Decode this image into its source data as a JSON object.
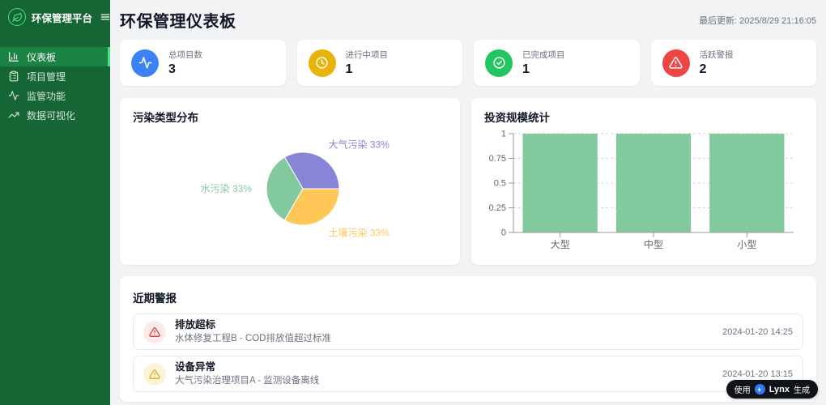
{
  "app": {
    "title": "环保管理平台"
  },
  "colors": {
    "sidebar_bg": "#166534",
    "sidebar_active_bg": "#1b8444",
    "sidebar_active_strip": "#4ade80",
    "stat_blue": "#3b82f6",
    "stat_yellow": "#eab308",
    "stat_green": "#22c55e",
    "stat_red": "#ef4444",
    "pie_purple": "#8884d8",
    "pie_green": "#82ca9d",
    "pie_yellow": "#ffc658",
    "bar_green": "#82ca9d"
  },
  "sidebar": {
    "items": [
      {
        "label": "仪表板",
        "icon": "bar-chart-icon",
        "active": true
      },
      {
        "label": "项目管理",
        "icon": "clipboard-list-icon",
        "active": false
      },
      {
        "label": "监管功能",
        "icon": "activity-icon",
        "active": false
      },
      {
        "label": "数据可视化",
        "icon": "trending-up-icon",
        "active": false
      }
    ]
  },
  "header": {
    "title": "环保管理仪表板",
    "last_updated": "最后更新: 2025/8/29 21:16:05"
  },
  "stats": [
    {
      "label": "总项目数",
      "value": "3",
      "icon": "activity-icon",
      "color": "#3b82f6"
    },
    {
      "label": "进行中项目",
      "value": "1",
      "icon": "clock-icon",
      "color": "#eab308"
    },
    {
      "label": "已完成项目",
      "value": "1",
      "icon": "check-circle-icon",
      "color": "#22c55e"
    },
    {
      "label": "活跃警报",
      "value": "2",
      "icon": "alert-triangle-icon",
      "color": "#ef4444"
    }
  ],
  "chart_data": [
    {
      "type": "pie",
      "title": "污染类型分布",
      "series": [
        {
          "name": "大气污染",
          "value": 33,
          "color": "#8884d8"
        },
        {
          "name": "水污染",
          "value": 33,
          "color": "#82ca9d"
        },
        {
          "name": "土壤污染",
          "value": 33,
          "color": "#ffc658"
        }
      ],
      "label_format": "{name} {value}%",
      "start_angle": 0,
      "direction": "counterclockwise",
      "legend": "none"
    },
    {
      "type": "bar",
      "title": "投资规模统计",
      "categories": [
        "大型",
        "中型",
        "小型"
      ],
      "values": [
        1,
        1,
        1
      ],
      "xlabel": "",
      "ylabel": "",
      "ylim": [
        0,
        1
      ],
      "yticks": [
        0,
        0.25,
        0.5,
        0.75,
        1
      ],
      "bar_color": "#82ca9d",
      "grid": "horizontal-dashed",
      "legend": "none"
    }
  ],
  "alerts": {
    "title": "近期警报",
    "items": [
      {
        "title": "排放超标",
        "description": "水体修复工程B - COD排放值超过标准",
        "time": "2024-01-20 14:25",
        "severity": "high"
      },
      {
        "title": "设备异常",
        "description": "大气污染治理项目A - 监测设备离线",
        "time": "2024-01-20 13:15",
        "severity": "medium"
      }
    ]
  },
  "badge": {
    "prefix": "使用",
    "brand": "Lynx",
    "suffix": "生成"
  }
}
